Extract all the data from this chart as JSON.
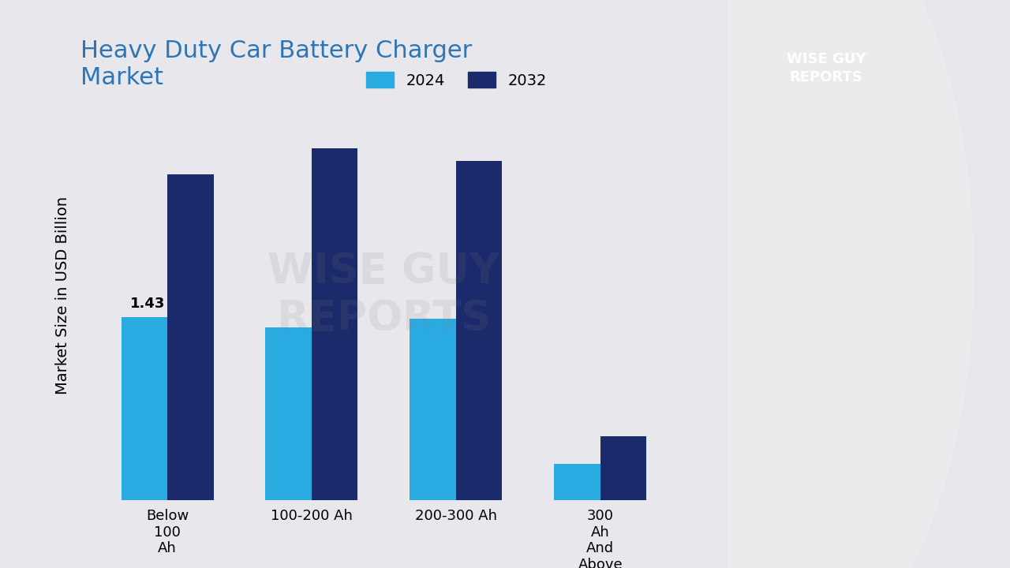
{
  "title": "Heavy Duty Car Battery Charger\nMarket",
  "ylabel": "Market Size in USD Billion",
  "categories": [
    "Below\n100\nAh",
    "100-200 Ah",
    "200-300 Ah",
    "300\nAh\nAnd\nAbove"
  ],
  "series": [
    {
      "label": "2024",
      "color": "#29ABE2",
      "values": [
        1.43,
        1.35,
        1.42,
        0.28
      ]
    },
    {
      "label": "2032",
      "color": "#1B2A6B",
      "values": [
        2.55,
        2.75,
        2.65,
        0.5
      ]
    }
  ],
  "bar_width": 0.32,
  "annotation": {
    "text": "1.43",
    "series": 0,
    "category": 0
  },
  "background_color": "#E8E8EC",
  "chart_area_color": "#E8E8EC",
  "title_color": "#2E75B6",
  "ylabel_color": "#000000",
  "legend_pos": "upper center",
  "ylim": [
    0,
    3.2
  ],
  "title_fontsize": 22,
  "ylabel_fontsize": 14,
  "tick_fontsize": 13,
  "legend_fontsize": 14,
  "navy_panel_color": "#1B2A6B",
  "navy_panel_ratio": 0.28
}
